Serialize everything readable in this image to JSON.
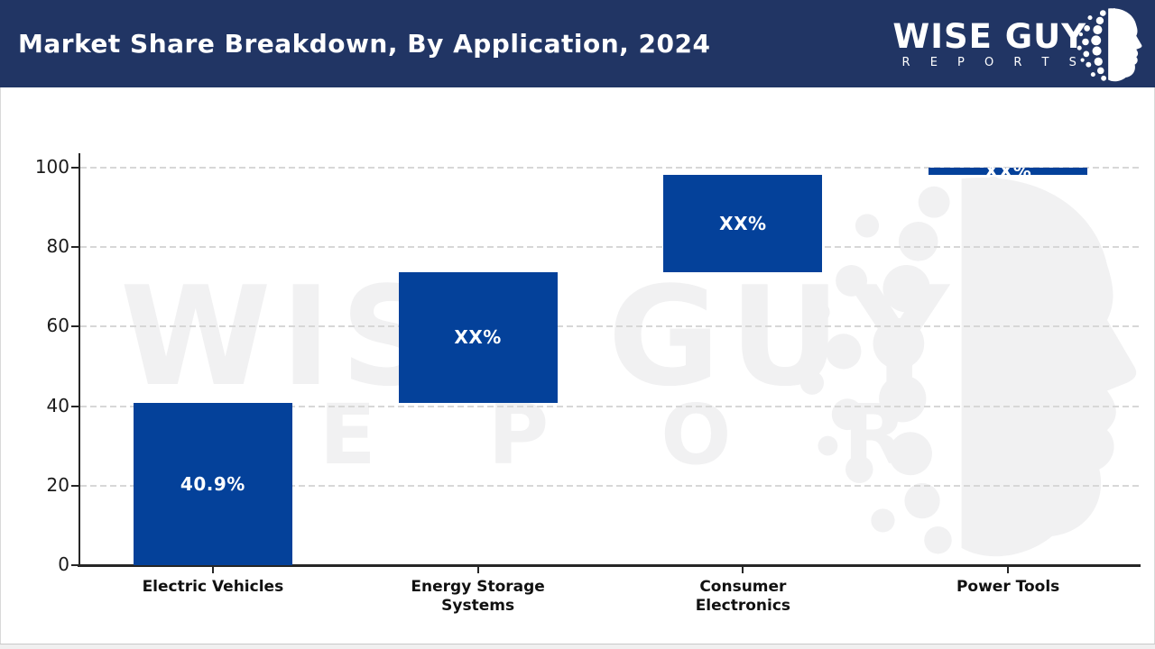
{
  "header": {
    "title": "Market Share Breakdown, By Application, 2024",
    "logo": {
      "name": "WISE GUY",
      "subname": "R E P O R T S"
    }
  },
  "watermark": {
    "line1": "WISE GUY",
    "line2": "R E P O R T S"
  },
  "chart_data": {
    "type": "bar",
    "variant": "floating-segment (waterfall-style market share)",
    "title": "Market Share Breakdown, By Application, 2024",
    "categories": [
      "Electric Vehicles",
      "Energy Storage Systems",
      "Consumer Electronics",
      "Power Tools"
    ],
    "category_label_lines": [
      [
        "Electric Vehicles"
      ],
      [
        "Energy Storage",
        "Systems"
      ],
      [
        "Consumer",
        "Electronics"
      ],
      [
        "Power Tools"
      ]
    ],
    "bars": [
      {
        "category": "Electric Vehicles",
        "start": 0,
        "end": 40.9,
        "label": "40.9%"
      },
      {
        "category": "Energy Storage Systems",
        "start": 40.9,
        "end": 73.6,
        "label": "XX%"
      },
      {
        "category": "Consumer Electronics",
        "start": 73.6,
        "end": 98.2,
        "label": "XX%"
      },
      {
        "category": "Power Tools",
        "start": 98.2,
        "end": 100,
        "label": "XX%"
      }
    ],
    "yticks": [
      0,
      20,
      40,
      60,
      80,
      100
    ],
    "ylim": [
      0,
      103.6
    ],
    "xlabel": "",
    "ylabel": "",
    "grid": {
      "axis": "y",
      "style": "dashed",
      "color": "#d7d7d7"
    },
    "legend": null,
    "bar_color": "#04419A",
    "bar_label_color": "#ffffff",
    "axis_color": "#262626",
    "tick_label_color": "#1a1a1a"
  },
  "colors": {
    "header_bg": "#213564",
    "accent_blue": "#04419A",
    "watermark_gray": "#f1f1f2"
  }
}
